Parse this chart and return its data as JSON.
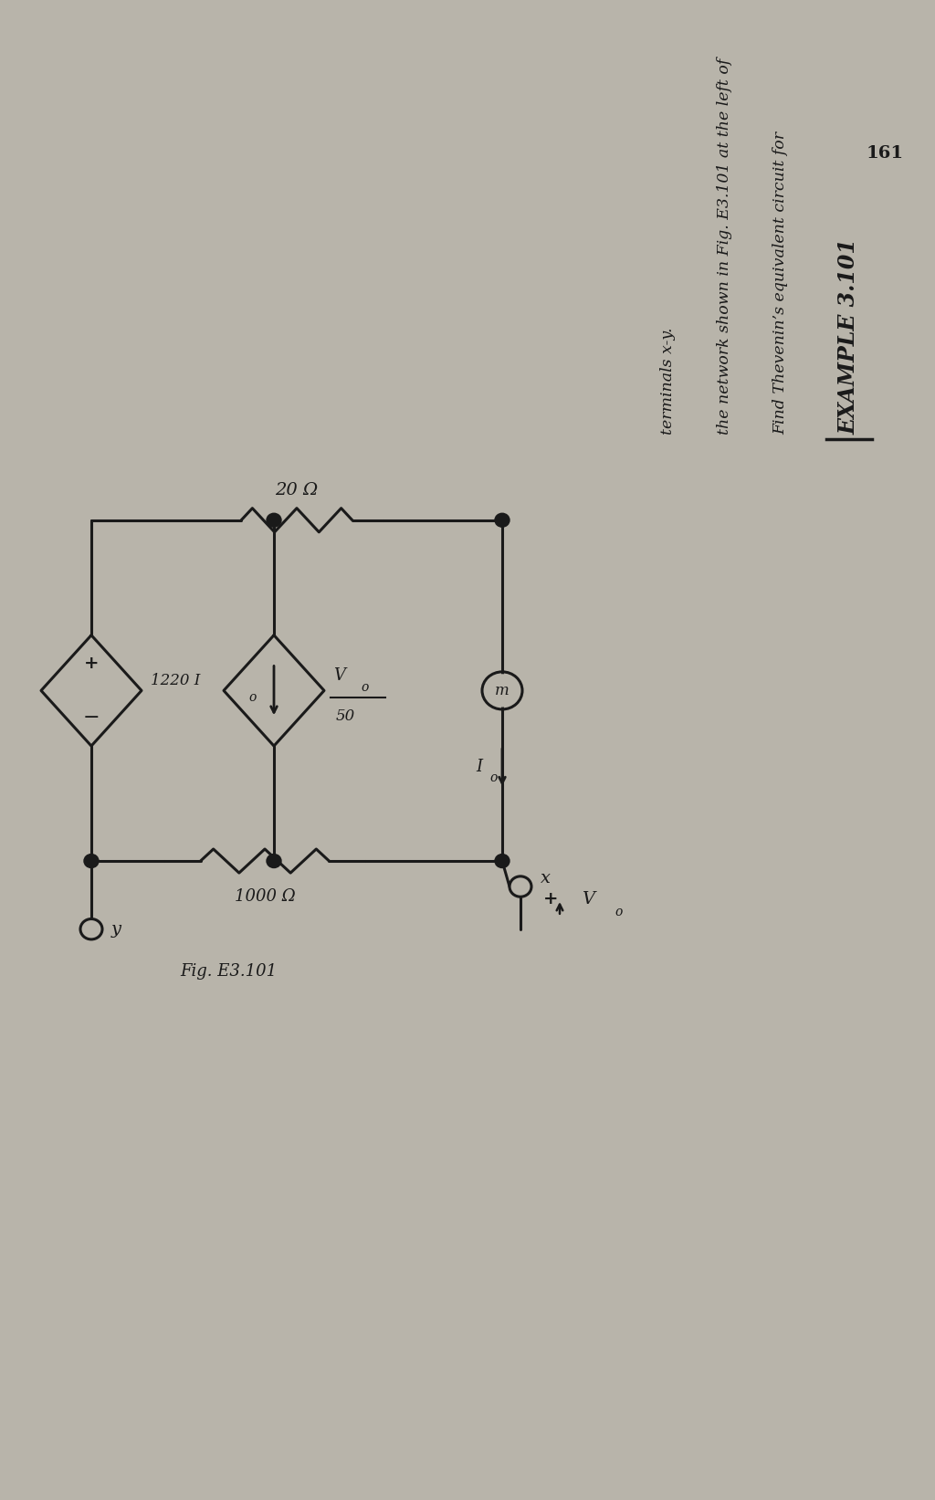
{
  "title": "EXAMPLE 3.101",
  "subtitle_line1": "Find Thevenin’s equivalent circuit for",
  "subtitle_line2": "the network shown in Fig. E3.101 at the left of",
  "subtitle_line3": "terminals x-y.",
  "fig_label": "Fig. E3.101",
  "page_number": "161",
  "bg_color": "#b8b4aa",
  "text_color": "#1a1a1a",
  "vs_label1": "1220 I",
  "vs_label2": "o",
  "cs_label_num": "V",
  "cs_label_sub": "o",
  "cs_label_den": "50",
  "r1_label": "20 Ω",
  "r2_label": "1000 Ω",
  "io_label": "I",
  "io_sub": "o",
  "vo_label": "V",
  "vo_sub": "o",
  "plus": "+",
  "minus": "−",
  "term_m": "m",
  "term_x": "x",
  "term_y": "y"
}
